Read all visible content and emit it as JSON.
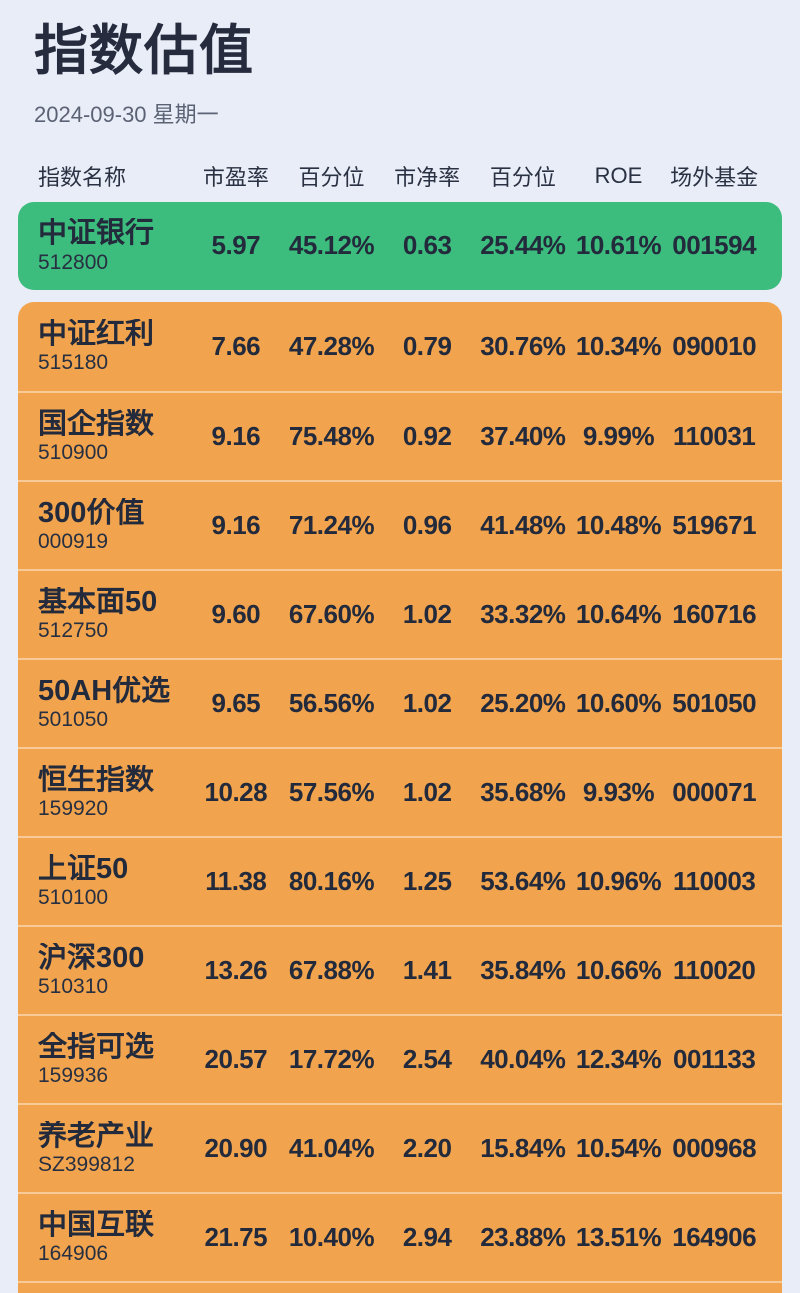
{
  "page": {
    "title": "指数估值",
    "date": "2024-09-30 星期一"
  },
  "colors": {
    "background": "#e9edf8",
    "highlight_row_green": "#3cbc7d",
    "row_orange": "#f1a44d",
    "text_dark": "#232b3e",
    "text_muted": "#5b6274"
  },
  "chart_data": {
    "type": "table",
    "title": "指数估值",
    "subtitle": "2024-09-30 星期一",
    "columns": [
      "指数名称",
      "市盈率",
      "百分位",
      "市净率",
      "百分位",
      "ROE",
      "场外基金"
    ],
    "rows": [
      {
        "name": "中证银行",
        "code": "512800",
        "pe": "5.97",
        "pe_pct": "45.12%",
        "pb": "0.63",
        "pb_pct": "25.44%",
        "roe": "10.61%",
        "fund": "001594",
        "highlight": "green"
      },
      {
        "name": "中证红利",
        "code": "515180",
        "pe": "7.66",
        "pe_pct": "47.28%",
        "pb": "0.79",
        "pb_pct": "30.76%",
        "roe": "10.34%",
        "fund": "090010"
      },
      {
        "name": "国企指数",
        "code": "510900",
        "pe": "9.16",
        "pe_pct": "75.48%",
        "pb": "0.92",
        "pb_pct": "37.40%",
        "roe": "9.99%",
        "fund": "110031"
      },
      {
        "name": "300价值",
        "code": "000919",
        "pe": "9.16",
        "pe_pct": "71.24%",
        "pb": "0.96",
        "pb_pct": "41.48%",
        "roe": "10.48%",
        "fund": "519671"
      },
      {
        "name": "基本面50",
        "code": "512750",
        "pe": "9.60",
        "pe_pct": "67.60%",
        "pb": "1.02",
        "pb_pct": "33.32%",
        "roe": "10.64%",
        "fund": "160716"
      },
      {
        "name": "50AH优选",
        "code": "501050",
        "pe": "9.65",
        "pe_pct": "56.56%",
        "pb": "1.02",
        "pb_pct": "25.20%",
        "roe": "10.60%",
        "fund": "501050"
      },
      {
        "name": "恒生指数",
        "code": "159920",
        "pe": "10.28",
        "pe_pct": "57.56%",
        "pb": "1.02",
        "pb_pct": "35.68%",
        "roe": "9.93%",
        "fund": "000071"
      },
      {
        "name": "上证50",
        "code": "510100",
        "pe": "11.38",
        "pe_pct": "80.16%",
        "pb": "1.25",
        "pb_pct": "53.64%",
        "roe": "10.96%",
        "fund": "110003"
      },
      {
        "name": "沪深300",
        "code": "510310",
        "pe": "13.26",
        "pe_pct": "67.88%",
        "pb": "1.41",
        "pb_pct": "35.84%",
        "roe": "10.66%",
        "fund": "110020"
      },
      {
        "name": "全指可选",
        "code": "159936",
        "pe": "20.57",
        "pe_pct": "17.72%",
        "pb": "2.54",
        "pb_pct": "40.04%",
        "roe": "12.34%",
        "fund": "001133"
      },
      {
        "name": "养老产业",
        "code": "SZ399812",
        "pe": "20.90",
        "pe_pct": "41.04%",
        "pb": "2.20",
        "pb_pct": "15.84%",
        "roe": "10.54%",
        "fund": "000968"
      },
      {
        "name": "中国互联",
        "code": "164906",
        "pe": "21.75",
        "pe_pct": "10.40%",
        "pb": "2.94",
        "pb_pct": "23.88%",
        "roe": "13.51%",
        "fund": "164906"
      }
    ]
  }
}
